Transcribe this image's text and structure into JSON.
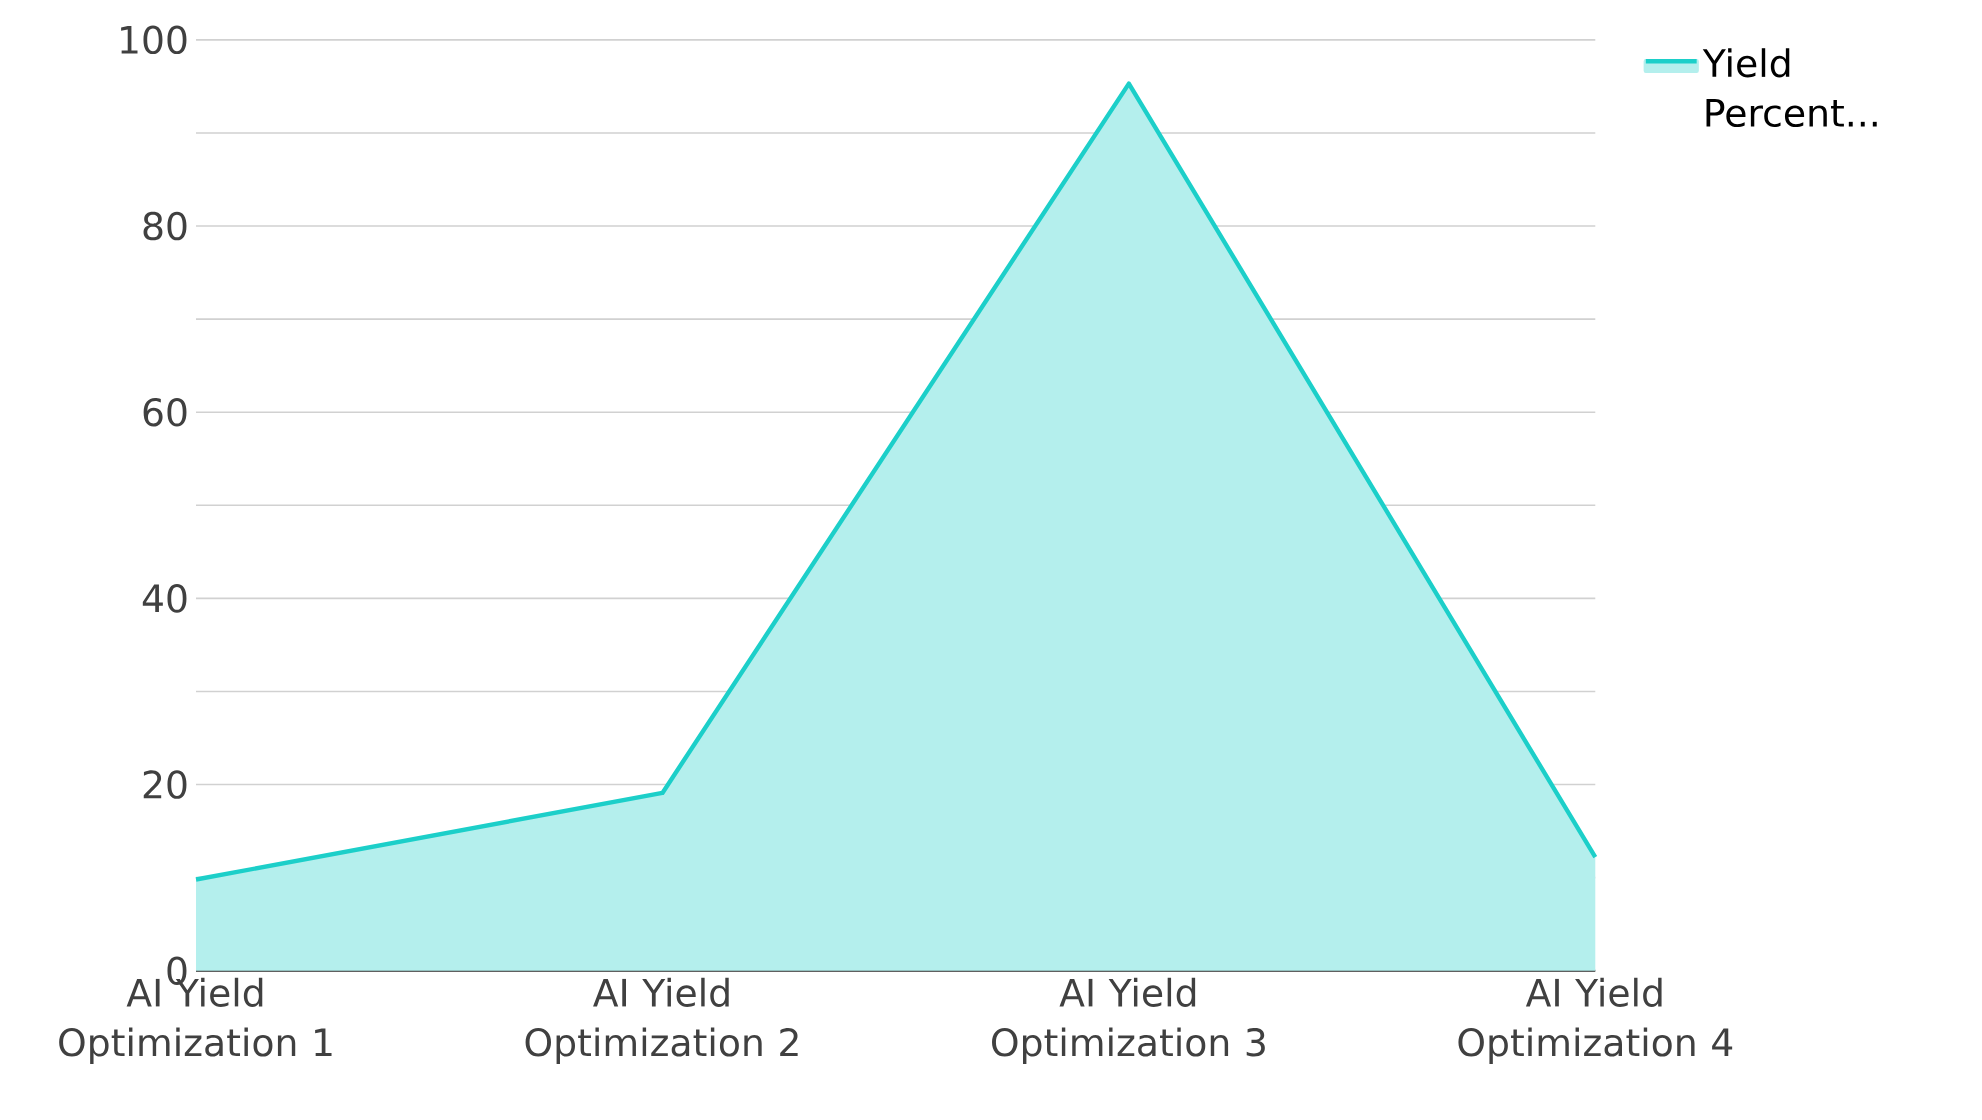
{
  "chart_data": {
    "type": "area",
    "categories": [
      "AI Yield Optimization 1",
      "AI Yield Optimization 2",
      "AI Yield Optimization 3",
      "AI Yield Optimization 4"
    ],
    "series": [
      {
        "name": "Yield Percent...",
        "color": "#1ccfc9",
        "values": [
          9.8,
          19.1,
          95.3,
          12.2
        ]
      }
    ],
    "ylim": [
      0,
      100
    ],
    "yticks": [
      0,
      {
        "value": 10,
        "label": null
      },
      20,
      {
        "value": 30,
        "label": null
      },
      40,
      {
        "value": 50,
        "label": null
      },
      60,
      {
        "value": 70,
        "label": null
      },
      80,
      {
        "value": 90,
        "label": null
      },
      100
    ],
    "grid": "y",
    "legend": "top right"
  }
}
